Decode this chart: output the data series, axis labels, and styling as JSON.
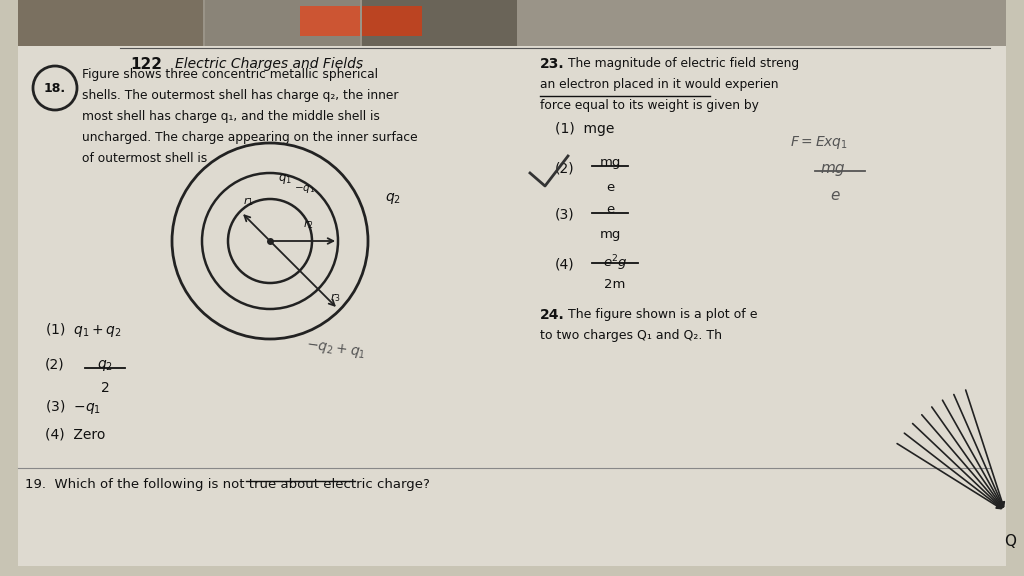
{
  "bg_color": "#c8c4b4",
  "page_color": "#dedad0",
  "title_num": "122",
  "title_text": "Electric Charges and Fields",
  "q18_text_lines": [
    "Figure shows three concentric metallic spherical",
    "shells. The outermost shell has charge q₂, the inner",
    "most shell has charge q₁, and the middle shell is",
    "uncharged. The charge appearing on the inner surface",
    "of outermost shell is"
  ],
  "q18_opts": [
    [
      "(1)",
      "q₁ + q₂"
    ],
    [
      "(2)",
      "q₂/2"
    ],
    [
      "(3)",
      "−q₁"
    ],
    [
      "(4)",
      "Zero"
    ]
  ],
  "q19_text": "19.  Which of the following is not̲ true about electric charge?",
  "q23_text_lines": [
    "The magnitude of electric field streng",
    "an electron placed in it would experien",
    "force equal to its weight is given by"
  ],
  "q23_opts": [
    "mge",
    "mg/e",
    "e/mg",
    "e²g/2m"
  ],
  "q24_text_lines": [
    "The figure shown is a plot of e",
    "to two charges Q₁ and Q₂. Th"
  ],
  "text_color": "#111111",
  "light_text": "#333333",
  "handwrite_color": "#555555",
  "circle_color": "#222222"
}
